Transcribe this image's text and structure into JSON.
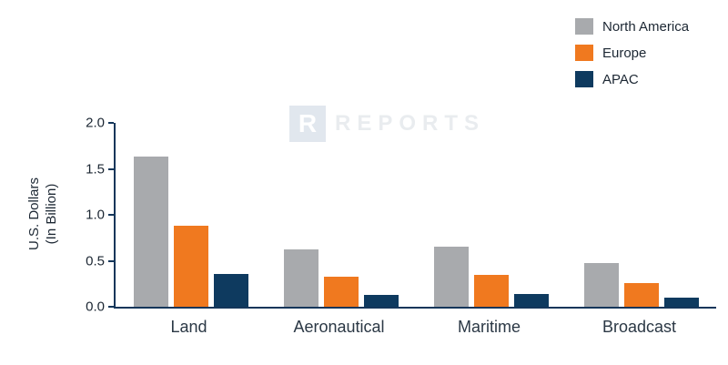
{
  "chart_data": {
    "type": "bar",
    "title": "",
    "categories": [
      "Land",
      "Aeronautical",
      "Maritime",
      "Broadcast"
    ],
    "series": [
      {
        "name": "North America",
        "color": "#a8aaad",
        "values": [
          1.63,
          0.62,
          0.65,
          0.48
        ]
      },
      {
        "name": "Europe",
        "color": "#f0791f",
        "values": [
          0.88,
          0.33,
          0.35,
          0.26
        ]
      },
      {
        "name": "APAC",
        "color": "#0e3a5f",
        "values": [
          0.36,
          0.13,
          0.14,
          0.1
        ]
      }
    ],
    "ylabel_line1": "U.S. Dollars",
    "ylabel_line2": "(In Billion)",
    "yticks": [
      0.0,
      0.5,
      1.0,
      1.5,
      2.0
    ],
    "ylim": [
      0,
      2.0
    ],
    "legend_position": "top-right",
    "grid": false,
    "axis_color": "#14365a"
  },
  "watermark": {
    "logo_letter": "R",
    "text": "REPORTS"
  }
}
